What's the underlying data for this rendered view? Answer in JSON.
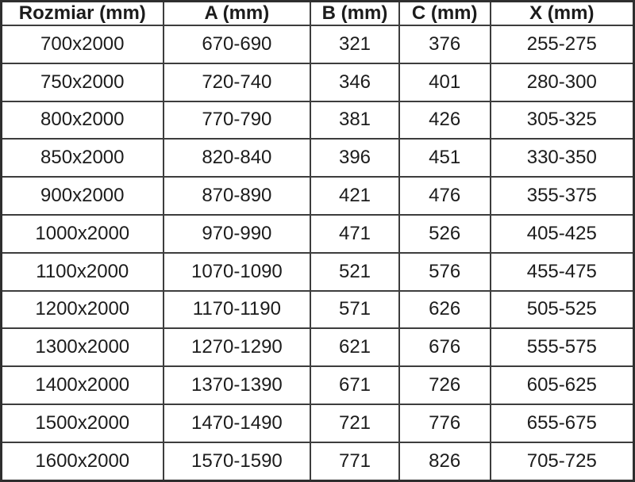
{
  "colors": {
    "border": "#3d3d3d",
    "outer_border": "#2f2f2f",
    "text": "#1c1c1c",
    "background": "#ffffff"
  },
  "chart_data": {
    "type": "table",
    "title": "",
    "columns": [
      "Rozmiar (mm)",
      "A (mm)",
      "B (mm)",
      "C (mm)",
      "X (mm)"
    ],
    "rows": [
      [
        "700x2000",
        "670-690",
        "321",
        "376",
        "255-275"
      ],
      [
        "750x2000",
        "720-740",
        "346",
        "401",
        "280-300"
      ],
      [
        "800x2000",
        "770-790",
        "381",
        "426",
        "305-325"
      ],
      [
        "850x2000",
        "820-840",
        "396",
        "451",
        "330-350"
      ],
      [
        "900x2000",
        "870-890",
        "421",
        "476",
        "355-375"
      ],
      [
        "1000x2000",
        "970-990",
        "471",
        "526",
        "405-425"
      ],
      [
        "1100x2000",
        "1070-1090",
        "521",
        "576",
        "455-475"
      ],
      [
        "1200x2000",
        "1170-1190",
        "571",
        "626",
        "505-525"
      ],
      [
        "1300x2000",
        "1270-1290",
        "621",
        "676",
        "555-575"
      ],
      [
        "1400x2000",
        "1370-1390",
        "671",
        "726",
        "605-625"
      ],
      [
        "1500x2000",
        "1470-1490",
        "721",
        "776",
        "655-675"
      ],
      [
        "1600x2000",
        "1570-1590",
        "771",
        "826",
        "705-725"
      ]
    ]
  }
}
